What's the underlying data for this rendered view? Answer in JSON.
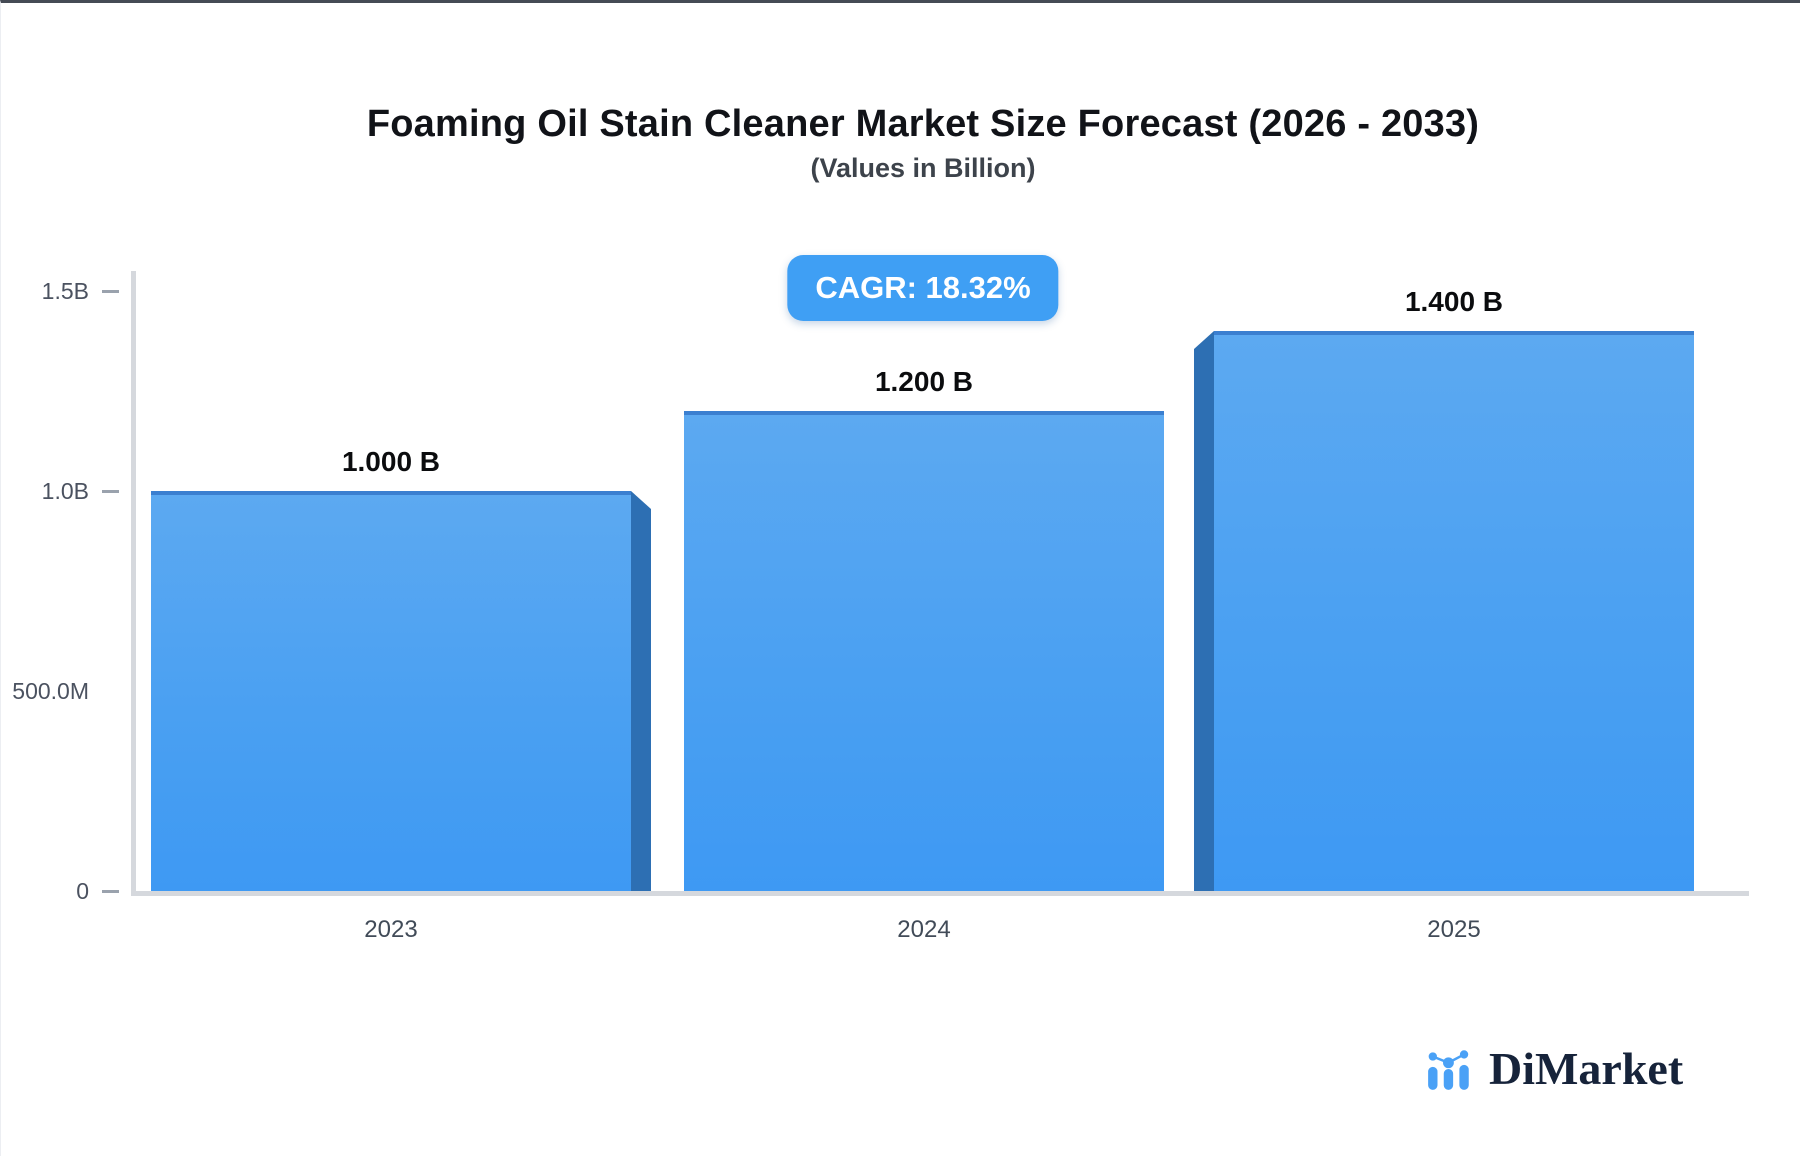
{
  "header": {
    "title": "Foaming Oil Stain Cleaner Market Size Forecast (2026 - 2033)",
    "subtitle": "(Values in Billion)",
    "cagr_badge": "CAGR: 18.32%"
  },
  "chart_data": {
    "type": "bar",
    "title": "Foaming Oil Stain Cleaner Market Size Forecast (2026 - 2033)",
    "subtitle": "(Values in Billion)",
    "cagr": "18.32%",
    "categories": [
      "2023",
      "2024",
      "2025"
    ],
    "values": [
      1000000000,
      1200000000,
      1400000000
    ],
    "value_labels": [
      "1.000 B",
      "1.200 B",
      "1.400 B"
    ],
    "ylim": [
      0,
      1500000000
    ],
    "y_ticks": [
      {
        "label": "1.5B",
        "value": 1500000000,
        "dash": true
      },
      {
        "label": "1.0B",
        "value": 1000000000,
        "dash": true
      },
      {
        "label": "500.0M",
        "value": 500000000,
        "dash": false
      },
      {
        "label": "0",
        "value": 0,
        "dash": true
      }
    ],
    "grid": false,
    "legend": false,
    "bar_color_top": "#5ca9f1",
    "bar_color_bottom": "#3e99f3",
    "bar_edge_color": "#3b7fd0",
    "bar_side_color": "#2d6fb3",
    "axis_color": "#d5d8dd"
  },
  "badge_colors": {
    "background": "#3f9ff4",
    "text": "#ffffff"
  },
  "brand": {
    "name": "DiMarket",
    "icon": "bar-line-chart-icon",
    "icon_color": "#4aa1f6",
    "text_color": "#16233a"
  }
}
